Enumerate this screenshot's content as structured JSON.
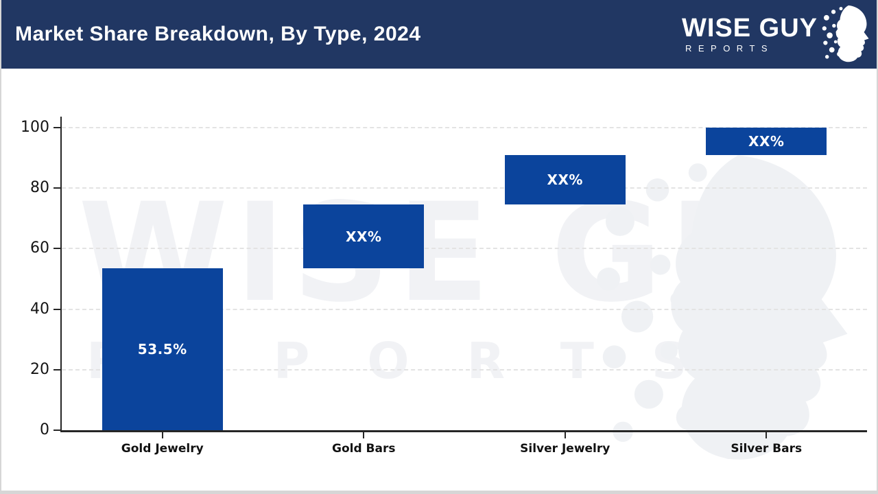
{
  "header": {
    "title": "Market Share Breakdown, By Type, 2024",
    "background_color": "#213763",
    "logo": {
      "line1": "WISE GUY",
      "line2": "REPORTS"
    }
  },
  "watermark": {
    "line1": "WISE GU",
    "line2": "REPORTS"
  },
  "chart_data": {
    "type": "bar",
    "variant": "waterfall",
    "title": "Market Share Breakdown, By Type, 2024",
    "categories": [
      "Gold Jewelry",
      "Gold Bars",
      "Silver Jewelry",
      "Silver Bars"
    ],
    "segments": [
      {
        "category": "Gold Jewelry",
        "start": 0,
        "end": 53.5,
        "label": "53.5%"
      },
      {
        "category": "Gold Bars",
        "start": 53.5,
        "end": 74.5,
        "label": "XX%"
      },
      {
        "category": "Silver Jewelry",
        "start": 74.5,
        "end": 91,
        "label": "XX%"
      },
      {
        "category": "Silver Bars",
        "start": 91,
        "end": 100,
        "label": "XX%"
      }
    ],
    "y_ticks": [
      0,
      20,
      40,
      60,
      80,
      100
    ],
    "ylim": [
      0,
      100
    ],
    "xlabel": "",
    "ylabel": "",
    "grid": "dashed-horizontal",
    "legend": "none",
    "bar_color": "#0b449c",
    "axis_color": "#262626",
    "gridline_color": "#e3e3e3",
    "bar_label_color": "#ffffff"
  }
}
